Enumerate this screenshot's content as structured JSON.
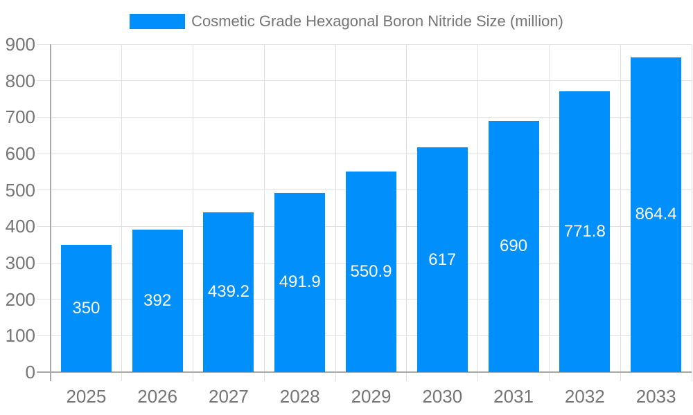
{
  "chart_data": {
    "type": "bar",
    "title": "Cosmetic Grade Hexagonal Boron Nitride Size (million)",
    "categories": [
      "2025",
      "2026",
      "2027",
      "2028",
      "2029",
      "2030",
      "2031",
      "2032",
      "2033"
    ],
    "series": [
      {
        "name": "Cosmetic Grade Hexagonal Boron Nitride Size (million)",
        "values": [
          350,
          392,
          439.2,
          491.9,
          550.9,
          617,
          690,
          771.8,
          864.4
        ]
      }
    ],
    "data_labels": [
      "350",
      "392",
      "439.2",
      "491.9",
      "550.9",
      "617",
      "690",
      "771.8",
      "864.4"
    ],
    "xlabel": "",
    "ylabel": "",
    "ylim": [
      0,
      900
    ],
    "ytick_step": 100,
    "ytick_labels": [
      "0",
      "100",
      "200",
      "300",
      "400",
      "500",
      "600",
      "700",
      "800",
      "900"
    ],
    "grid": true,
    "legend_position": "top",
    "colors": {
      "bar": "#008ffb",
      "value_label": "#ffffff",
      "axis_label": "#757575",
      "grid_line": "#e0e0e0",
      "axis_line": "#a8a8a8"
    }
  }
}
